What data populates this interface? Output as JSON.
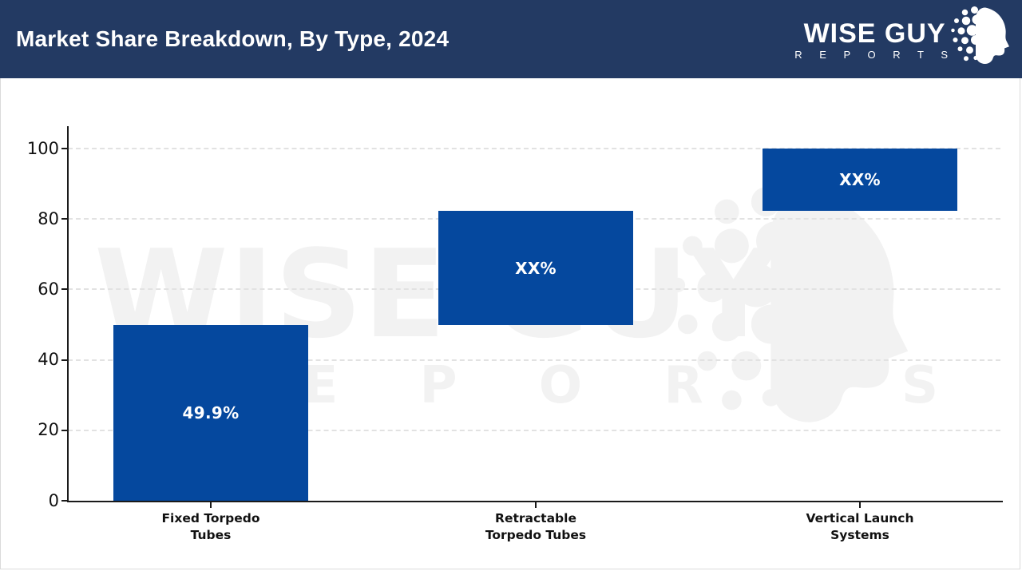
{
  "header": {
    "title": "Market Share Breakdown, By Type, 2024",
    "bg_color": "#233a63",
    "logo": {
      "line1": "WISE GUY",
      "line2": "R E P O R T S"
    }
  },
  "watermark": {
    "line1": "WISE GUY",
    "line2": "R E P O R T S"
  },
  "chart_data": {
    "type": "bar",
    "subtype": "floating-segment-waterfall",
    "title": "Market Share Breakdown, By Type, 2024",
    "categories": [
      {
        "lines": [
          "Fixed Torpedo",
          "Tubes"
        ]
      },
      {
        "lines": [
          "Retractable",
          "Torpedo Tubes"
        ]
      },
      {
        "lines": [
          "Vertical Launch",
          "Systems"
        ]
      }
    ],
    "segments": [
      {
        "start": 0,
        "end": 49.9,
        "label": "49.9%"
      },
      {
        "start": 49.9,
        "end": 82.2,
        "label": "XX%"
      },
      {
        "start": 82.2,
        "end": 100,
        "label": "XX%"
      }
    ],
    "values": [
      49.9,
      32.3,
      17.8
    ],
    "xlabel": "",
    "ylabel": "",
    "ylim": [
      0,
      100
    ],
    "yticks": [
      0,
      20,
      40,
      60,
      80,
      100
    ],
    "grid": "horizontal-dashed",
    "legend": "none",
    "bar_color": "#05489e",
    "grid_color": "#e2e2e2",
    "axis_color": "#1a1a1a",
    "text_color": "#111111"
  }
}
